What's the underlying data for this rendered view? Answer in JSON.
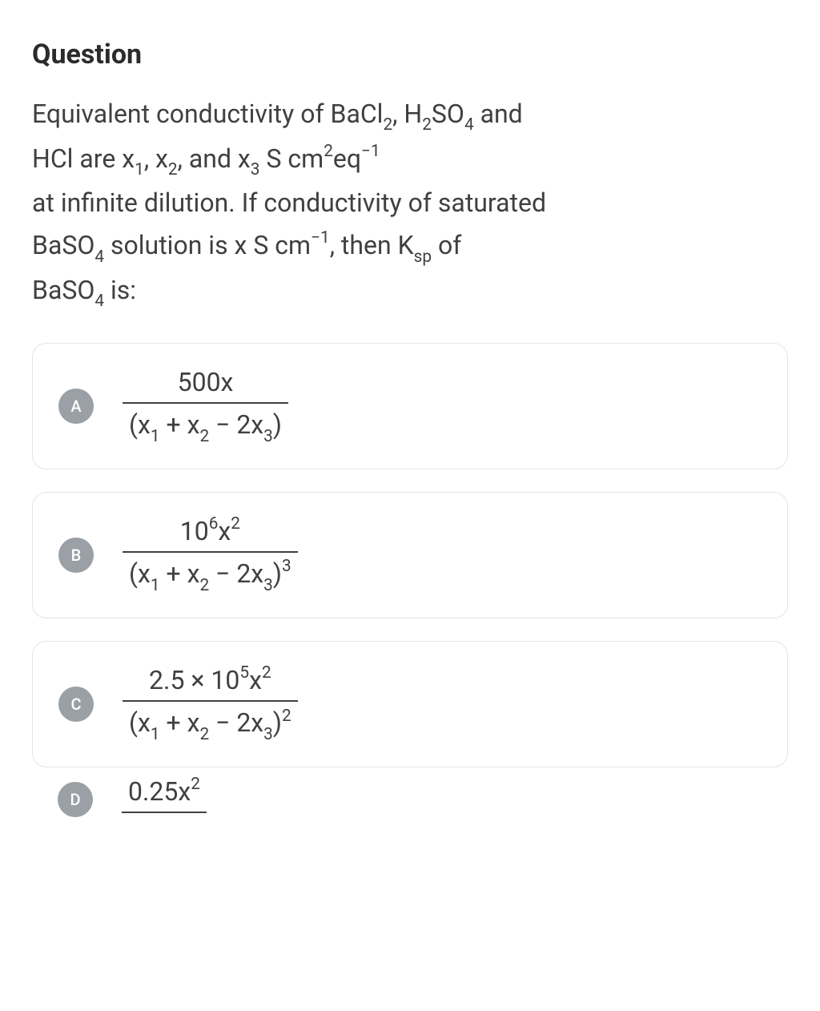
{
  "heading": "Question",
  "question": {
    "line1_pre": "Equivalent conductivity of ",
    "c1": "BaCl",
    "c1_sub": "2",
    "sep1": ", ",
    "c2_pre": "H",
    "c2_sub1": "2",
    "c2_mid": "SO",
    "c2_sub2": "4",
    "line1_post": " and",
    "line2_pre": "HCl are x",
    "x1_sub": "1",
    "comma1": ", x",
    "x2_sub": "2",
    "line2_mid": ", and x",
    "x3_sub": "3",
    "line2_post_a": " S cm",
    "unit_sup1": "2",
    "unit_mid": "eq",
    "unit_sup2": "−1",
    "line3": "at infinite dilution. If conductivity of saturated",
    "line4_pre": "BaSO",
    "l4_sub": "4",
    "line4_mid": " solution is x S cm",
    "l4_sup": "−1",
    "line4_post": ", then K",
    "ksp_sub": "sp",
    "line4_end": " of",
    "line5_pre": "BaSO",
    "l5_sub": "4",
    "line5_end": " is:"
  },
  "options": {
    "A": {
      "letter": "A",
      "num": "500x",
      "den_pre": "(x",
      "s1": "1",
      "m1": " + x",
      "s2": "2",
      "m2": " − 2x",
      "s3": "3",
      "den_post": ")"
    },
    "B": {
      "letter": "B",
      "num_pre": "10",
      "num_sup1": "6",
      "num_mid": "x",
      "num_sup2": "2",
      "den_pre": "(x",
      "s1": "1",
      "m1": " + x",
      "s2": "2",
      "m2": " − 2x",
      "s3": "3",
      "den_post": ")",
      "den_sup": "3"
    },
    "C": {
      "letter": "C",
      "num_pre": "2.5 × 10",
      "num_sup1": "5",
      "num_mid": "x",
      "num_sup2": "2",
      "den_pre": "(x",
      "s1": "1",
      "m1": " + x",
      "s2": "2",
      "m2": " − 2x",
      "s3": "3",
      "den_post": ")",
      "den_sup": "2"
    },
    "D": {
      "letter": "D",
      "num_pre": "0.25x",
      "num_sup": "2"
    }
  },
  "colors": {
    "badge_bg": "#9aa0a6",
    "text": "#404040",
    "border": "#e4e4e4"
  }
}
